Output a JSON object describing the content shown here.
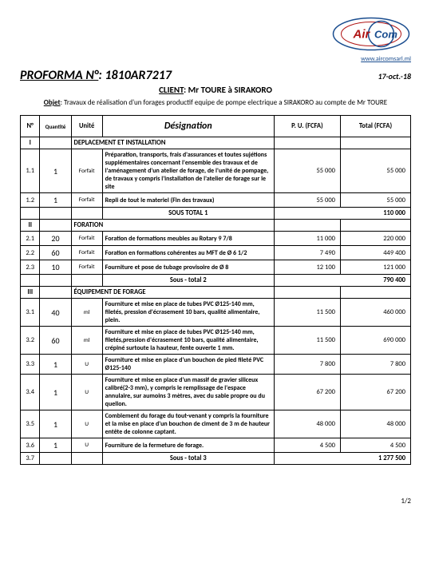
{
  "brand": {
    "air": "Air",
    "com": "Com",
    "website": "www.aircomsarl.ml"
  },
  "title": {
    "label": "PROFORMA N°",
    "sep": ": ",
    "number": "1810AR7217",
    "date": "17-oct.-18"
  },
  "client": {
    "label": "CLIENT",
    "sep": ": ",
    "value": "Mr TOURE à SIRAKORO"
  },
  "objet": {
    "label": "Objet",
    "sep": ": ",
    "value": "Travaux de réalisation d'un forages productif equipe de pompe electrique a SIRAKORO au compte de Mr TOURE"
  },
  "headers": {
    "n": "N°",
    "q": "Quantité",
    "u": "Unité",
    "d": "Désignation",
    "pu": "P. U. (FCFA)",
    "t": "Total (FCFA)"
  },
  "sections": [
    {
      "n": "I",
      "title": "DEPLACEMENT ET INSTALLATION",
      "rows": [
        {
          "n": "1.1",
          "q": "1",
          "u": "Forfait",
          "d": "Préparation, transports, frais d'assurances et toutes sujétions supplémentaires concernant l'ensemble des travaux et de l'aménagement d'un atelier de forage, de l'unité de pompage, de travaux y compris l'installation de l'atelier de forage sur le site",
          "pu": "55 000",
          "t": "55 000"
        },
        {
          "n": "1.2",
          "q": "1",
          "u": "Forfait",
          "d": "Repli de tout le materiel (Fin des travaux)",
          "pu": "55 000",
          "t": "55 000"
        }
      ],
      "sub": {
        "label": "SOUS TOTAL 1",
        "t": "110 000"
      }
    },
    {
      "n": "II",
      "title": "FORATION",
      "rows": [
        {
          "n": "2.1",
          "q": "20",
          "u": "Forfait",
          "d": "Foration de formations meubles au Rotary 9 7/8",
          "pu": "11 000",
          "t": "220 000"
        },
        {
          "n": "2.2",
          "q": "60",
          "u": "Forfait",
          "d": "Foration en formations cohérentes au MFT de Ø 6 1/2",
          "pu": "7 490",
          "t": "449 400"
        },
        {
          "n": "2.3",
          "q": "10",
          "u": "Forfait",
          "d": "Fourniture et pose de tubage provisoire de Ø 8",
          "pu": "12 100",
          "t": "121 000"
        }
      ],
      "sub": {
        "label": "Sous - total 2",
        "t": "790 400"
      }
    },
    {
      "n": "III",
      "title": "ÉQUIPEMENT DE FORAGE",
      "rows": [
        {
          "n": "3.1",
          "q": "40",
          "u": "ml",
          "d": "Fourniture et mise en place de tubes PVC Ø125-140 mm, filetés, pression d'écrasement 10 bars, qualité alimentaire, plein.",
          "pu": "11 500",
          "t": "460 000"
        },
        {
          "n": "3.2",
          "q": "60",
          "u": "ml",
          "d": "Fourniture et mise en place de tubes PVC Ø125-140 mm, filetés,pression d'écrasement 10 bars, qualité alimentaire, crépiné surtoute la hauteur, fente ouverte 1 mm.",
          "pu": "11 500",
          "t": "690 000"
        },
        {
          "n": "3.3",
          "q": "1",
          "u": "U",
          "d": "Fourniture et mise en place d'un bouchon de pied fileté PVC Ø125-140",
          "pu": "7 800",
          "t": "7 800"
        },
        {
          "n": "3.4",
          "q": "1",
          "u": "U",
          "d": "Fourniture et mise en place d'un massif de gravier siliceux calibré(2-3 mm), y compris le remplissage de l'espace annulaire, sur aumoins 3 mètres, avec du sable propre ou du quellon.",
          "pu": "67 200",
          "t": "67 200"
        },
        {
          "n": "3.5",
          "q": "1",
          "u": "U",
          "d": "Comblement du forage du tout-venant y compris la fourniture et la mise en place d'un bouchon de ciment  de 3 m de hauteur entête de colonne captant.",
          "pu": "48 000",
          "t": "48 000"
        },
        {
          "n": "3.6",
          "q": "1",
          "u": "U",
          "d": "Fourniture de la fermeture  de forage.",
          "pu": "4 500",
          "t": "4 500"
        }
      ],
      "sub": {
        "n": "3.7",
        "label": "Sous - total 3",
        "t": "1 277 500"
      }
    }
  ],
  "footer": {
    "page": "1/2"
  }
}
